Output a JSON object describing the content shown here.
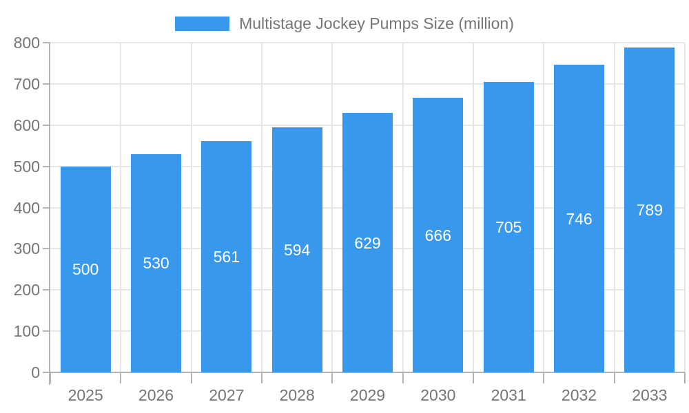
{
  "chart_data": {
    "type": "bar",
    "title": "Multistage Jockey Pumps Size (million)",
    "categories": [
      "2025",
      "2026",
      "2027",
      "2028",
      "2029",
      "2030",
      "2031",
      "2032",
      "2033"
    ],
    "values": [
      500,
      530,
      561,
      594,
      629,
      666,
      705,
      746,
      789
    ],
    "xlabel": "",
    "ylabel": "",
    "ylim": [
      0,
      800
    ],
    "ytick_interval": 100,
    "yticks": [
      0,
      100,
      200,
      300,
      400,
      500,
      600,
      700,
      800
    ],
    "grid": true,
    "legend_position": "top",
    "value_label_position": "inside-center",
    "colors": {
      "bar": "#3899EC",
      "grid": "#E6E6E6",
      "axis": "#B3B3B3",
      "tick_text": "#757575",
      "value_label": "#FFFFFF",
      "background": "#FFFFFF"
    }
  }
}
